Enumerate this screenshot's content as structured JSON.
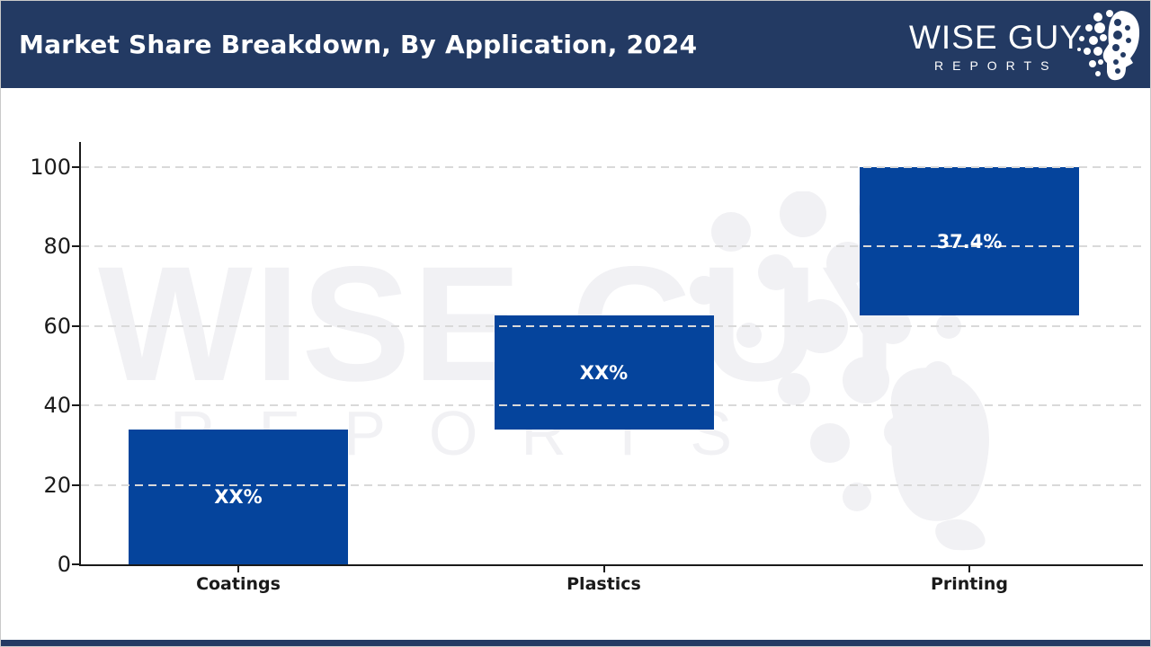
{
  "header": {
    "title": "Market Share Breakdown, By Application, 2024",
    "bg_color": "#233a63",
    "logo": {
      "line1": "WISE GUY",
      "line2": "REPORTS"
    }
  },
  "watermark": {
    "line1": "WISE GUY",
    "line2": "REPORTS"
  },
  "chart_data": {
    "type": "bar",
    "variant": "floating-waterfall-segments",
    "title": "Market Share Breakdown, By Application, 2024",
    "categories": [
      "Coatings",
      "Plastics",
      "Printing"
    ],
    "series": [
      {
        "name": "Market share (%)",
        "segments": [
          {
            "category": "Coatings",
            "start": 0,
            "end": 34,
            "label": "XX%"
          },
          {
            "category": "Plastics",
            "start": 34,
            "end": 62.6,
            "label": "XX%"
          },
          {
            "category": "Printing",
            "start": 62.6,
            "end": 100,
            "label": "37.4%"
          }
        ]
      }
    ],
    "yticks": [
      0,
      20,
      40,
      60,
      80,
      100
    ],
    "ylim": [
      0,
      105
    ],
    "xlabel": "",
    "ylabel": "",
    "legend": "none",
    "grid": {
      "horizontal": true,
      "style": "dashed",
      "color": "#d9d9d9"
    },
    "bar_color": "#05449c",
    "bar_label_color": "#ffffff",
    "axis_color": "#1a1a1a",
    "tick_label_color": "#1a1a1a"
  },
  "footer": {
    "bg_color": "#233a63"
  }
}
